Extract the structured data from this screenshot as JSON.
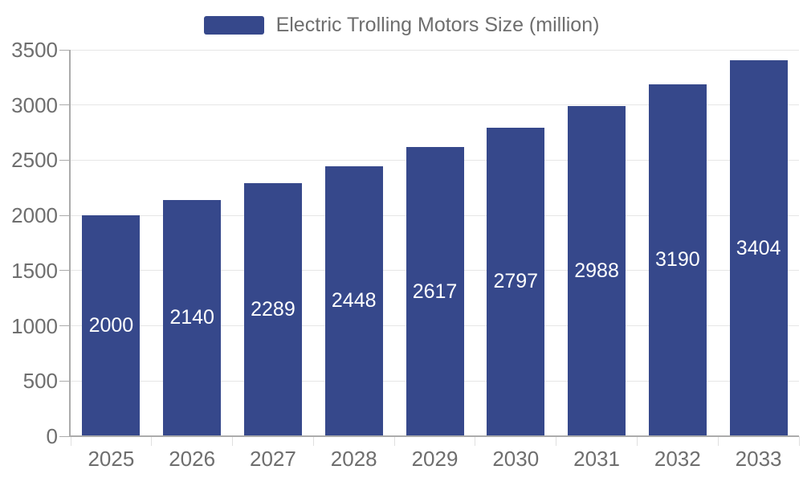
{
  "legend": {
    "label": "Electric Trolling Motors Size (million)"
  },
  "colors": {
    "bar": "#36488B",
    "bar_label": "#FFFFFF",
    "axis_line": "#ABABAB",
    "grid_line": "#E6E6E6",
    "x_tick_line": "#E0E0E0",
    "y_tick_line": "#ABABAB",
    "tick_label": "#6E6E6E",
    "legend_text": "#6E6E6E",
    "background": "#FFFFFF"
  },
  "chart_data": {
    "type": "bar",
    "title": "Electric Trolling Motors Size (million)",
    "categories": [
      "2025",
      "2026",
      "2027",
      "2028",
      "2029",
      "2030",
      "2031",
      "2032",
      "2033"
    ],
    "series": [
      {
        "name": "Electric Trolling Motors Size (million)",
        "values": [
          2000,
          2140,
          2289,
          2448,
          2617,
          2797,
          2988,
          3190,
          3404
        ]
      }
    ],
    "xlabel": "",
    "ylabel": "",
    "ylim": [
      0,
      3500
    ],
    "ytick_step": 500,
    "yticks": [
      0,
      500,
      1000,
      1500,
      2000,
      2500,
      3000,
      3500
    ],
    "grid": true,
    "legend_position": "top-center",
    "value_labels": "inside-center"
  }
}
